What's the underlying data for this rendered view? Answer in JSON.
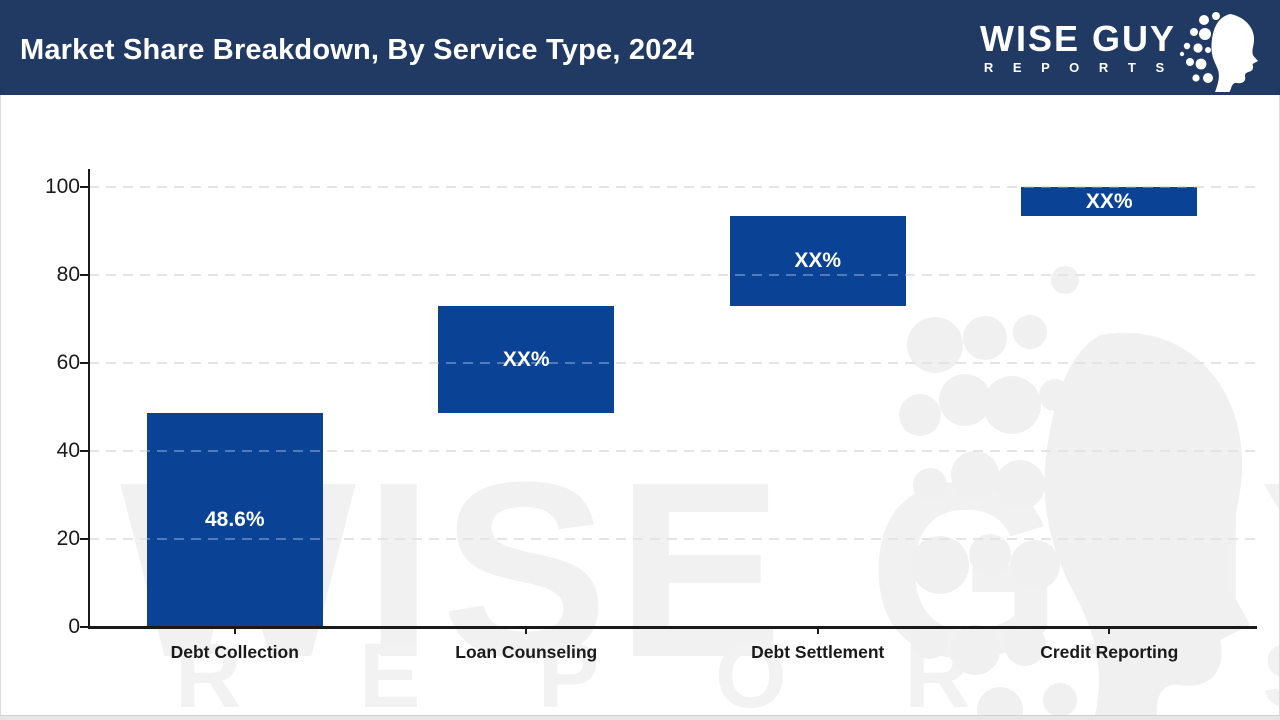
{
  "header": {
    "title": "Market Share Breakdown, By Service Type, 2024",
    "bg_color": "#213A64",
    "logo": {
      "line1": "WISE GUY",
      "line2": "R E P O R T S"
    }
  },
  "watermark": {
    "line1": "WISE GUY",
    "line2": "R E P O R T S"
  },
  "chart_data": {
    "type": "bar",
    "subtype": "waterfall",
    "title": "Market Share Breakdown, By Service Type, 2024",
    "xlabel": "",
    "ylabel": "",
    "ylim": [
      0,
      100
    ],
    "yticks": [
      0,
      20,
      40,
      60,
      80,
      100
    ],
    "grid": "horizontal-dashed",
    "legend": "none",
    "bar_color": "#0A4296",
    "bar_label_color": "#ffffff",
    "axis_color": "#1a1a1a",
    "grid_color": "#d9d9d9",
    "categories": [
      "Debt Collection",
      "Loan Counseling",
      "Debt Settlement",
      "Credit Reporting"
    ],
    "segments": [
      {
        "category": "Debt Collection",
        "label": "48.6%",
        "start": 0,
        "end": 48.6,
        "value": 48.6
      },
      {
        "category": "Loan Counseling",
        "label": "XX%",
        "start": 48.6,
        "end": 72.9,
        "value": 24.3
      },
      {
        "category": "Debt Settlement",
        "label": "XX%",
        "start": 72.9,
        "end": 93.4,
        "value": 20.5
      },
      {
        "category": "Credit Reporting",
        "label": "XX%",
        "start": 93.4,
        "end": 100,
        "value": 6.6
      }
    ]
  }
}
